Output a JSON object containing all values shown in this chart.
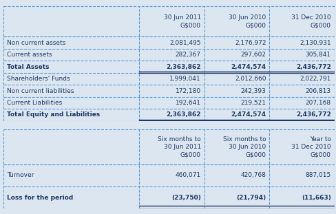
{
  "bg_color": "#dce6f1",
  "border_color": "#5b9bd5",
  "text_color": "#1f3864",
  "double_line_color": "#1f3864",
  "table1": {
    "col_headers": [
      "",
      "30 Jun 2011\nG$000",
      "30 Jun 2010\nG$000",
      "31 Dec 2010\nG$000"
    ],
    "rows": [
      [
        "Non current assets",
        "2,081,495",
        "2,176,972",
        "2,130,931",
        false
      ],
      [
        "Current assets",
        "282,367",
        "297,602",
        "305,841",
        false
      ],
      [
        "Total Assets",
        "2,363,862",
        "2,474,574",
        "2,436,772",
        true
      ],
      [
        "Shareholders' Funds",
        "1,999,041",
        "2,012,660",
        "2,022,791",
        false
      ],
      [
        "Non current liabilities",
        "172,180",
        "242,393",
        "206,813",
        false
      ],
      [
        "Current Liabilities",
        "192,641",
        "219,521",
        "207,168",
        false
      ],
      [
        "Total Equity and Liabilities",
        "2,363,862",
        "2,474,574",
        "2,436,772",
        true
      ]
    ]
  },
  "table2": {
    "col_headers": [
      "",
      "Six months to\n30 Jun 2011\nG$000",
      "Six months to\n30 Jun 2010\nG$000",
      "Year to\n31 Dec 2010\nG$000"
    ],
    "rows": [
      [
        "Turnover",
        "460,071",
        "420,768",
        "887,015",
        false
      ],
      [
        "Loss for the period",
        "(23,750)",
        "(21,794)",
        "(11,663)",
        true
      ]
    ]
  },
  "fig_width": 4.88,
  "fig_height": 3.11,
  "dpi": 100
}
